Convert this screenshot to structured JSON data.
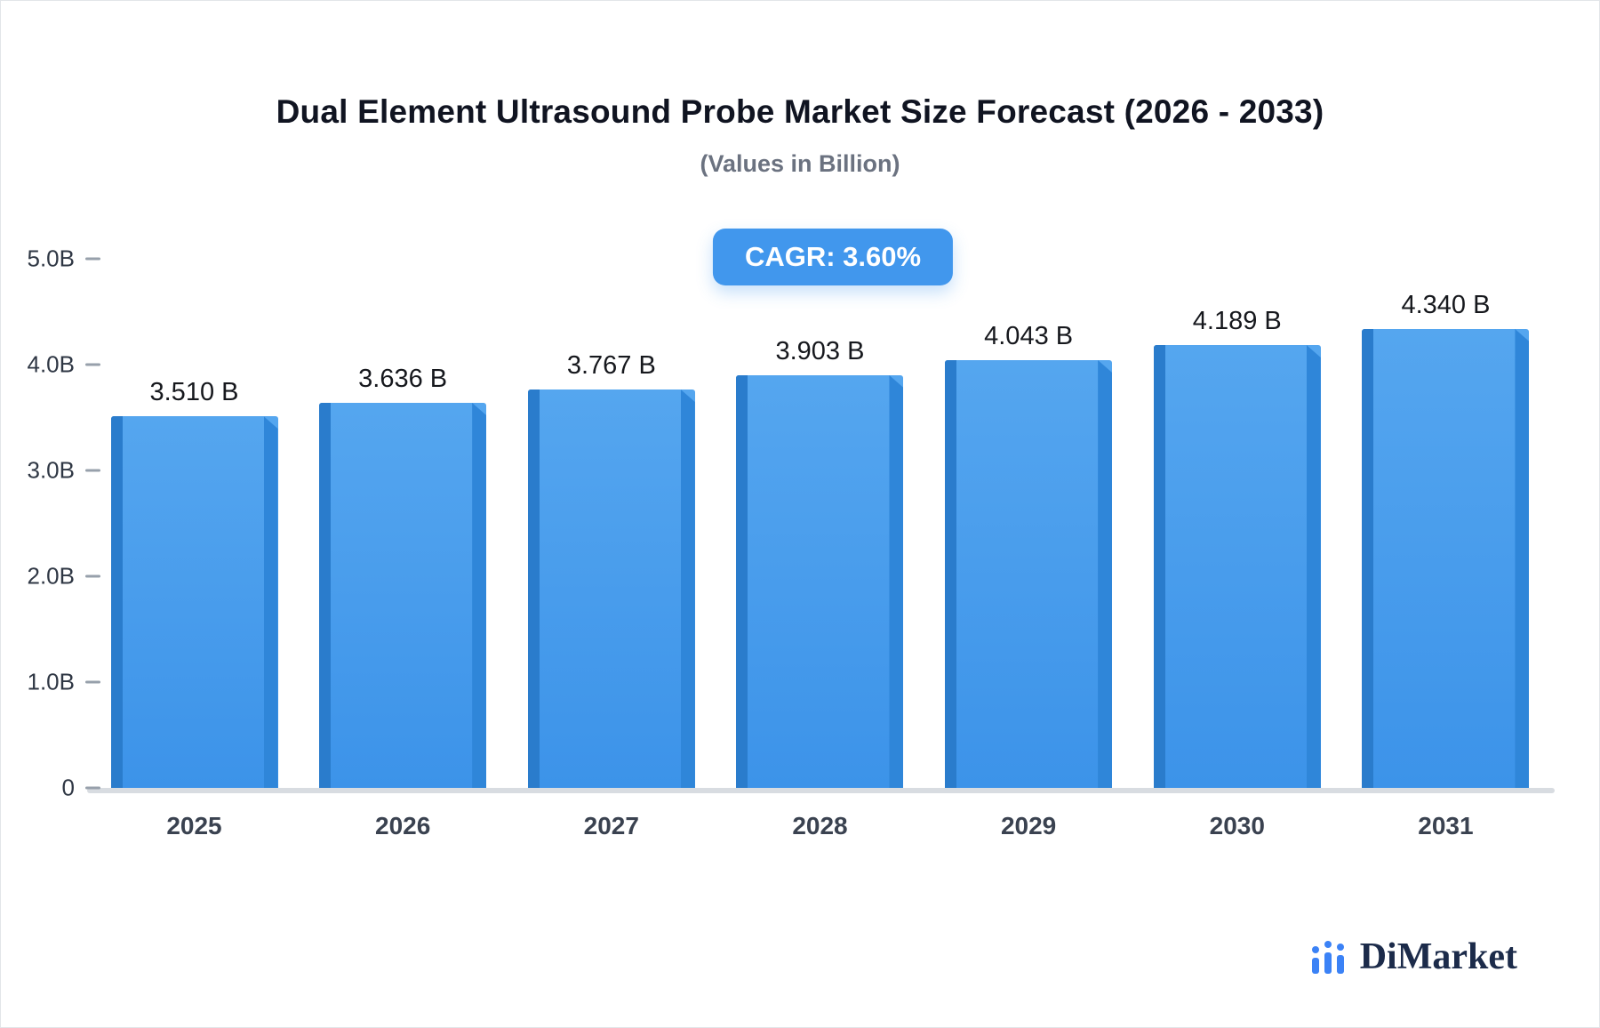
{
  "chart_data": {
    "type": "bar",
    "title": "Dual Element Ultrasound Probe Market Size Forecast (2026 - 2033)",
    "subtitle": "(Values in Billion)",
    "cagr_label": "CAGR: 3.60%",
    "categories": [
      "2025",
      "2026",
      "2027",
      "2028",
      "2029",
      "2030",
      "2031"
    ],
    "values": [
      3.51,
      3.636,
      3.767,
      3.903,
      4.043,
      4.189,
      4.34
    ],
    "value_labels": [
      "3.510 B",
      "3.636 B",
      "3.767 B",
      "3.903 B",
      "4.043 B",
      "4.189 B",
      "4.340 B"
    ],
    "xlabel": "",
    "ylabel": "",
    "ylim": [
      0,
      5
    ],
    "y_ticks": [
      {
        "label": "5.0B",
        "value": 5
      },
      {
        "label": "4.0B",
        "value": 4
      },
      {
        "label": "3.0B",
        "value": 3
      },
      {
        "label": "2.0B",
        "value": 2
      },
      {
        "label": "1.0B",
        "value": 1
      },
      {
        "label": "0",
        "value": 0
      }
    ],
    "grid": false,
    "legend_position": "none"
  },
  "logo": {
    "text": "DiMarket"
  },
  "colors": {
    "accent": "#4197ed",
    "bar_top": "#55a6ef",
    "bar_bottom": "#3c93e9",
    "bar_side_left": "#2a7ccc",
    "bar_side_right": "#2f86d9",
    "title": "#101421",
    "subtitle": "#6b7280",
    "logo_text": "#1c2b4a",
    "logo_icon": "#3b82f6"
  }
}
